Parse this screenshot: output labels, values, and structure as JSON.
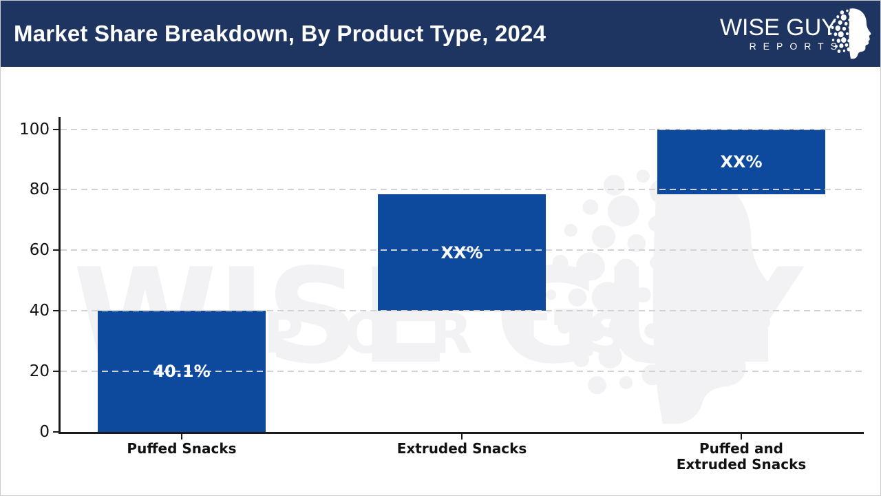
{
  "header": {
    "title": "Market Share Breakdown, By Product Type, 2024",
    "logo": {
      "wordmark": "WISE GUY",
      "subtext": "REPORTS"
    }
  },
  "watermark": {
    "wordmark": "WISE GUY",
    "subtext": "REPORTS"
  },
  "colors": {
    "header_bg": "#1e3461",
    "bar_blue": "#0d4a9e",
    "title_text": "#ffffff",
    "watermark_gray": "#f2f2f4",
    "axis_black": "#1a1a1a",
    "gridline_gray": "#d2d2d2",
    "frame_border": "#cccccc"
  },
  "chart_data": {
    "type": "bar",
    "variant": "floating segmented bars, cumulative to 100%",
    "title": "Market Share Breakdown, By Product Type, 2024",
    "categories": [
      "Puffed Snacks",
      "Extruded Snacks",
      "Puffed and Extruded Snacks"
    ],
    "category_display": [
      "Puffed Snacks",
      "Extruded Snacks",
      "Puffed and\nExtruded Snacks"
    ],
    "bars": [
      {
        "category": "Puffed Snacks",
        "start": 0,
        "end": 40.1,
        "value_label": "40.1%"
      },
      {
        "category": "Extruded Snacks",
        "start": 40.1,
        "end": 78.4,
        "value_label": "XX%"
      },
      {
        "category": "Puffed and Extruded Snacks",
        "start": 78.4,
        "end": 100,
        "value_label": "XX%"
      }
    ],
    "xlabel": "",
    "ylabel": "",
    "yticks": [
      0,
      20,
      40,
      60,
      80,
      100
    ],
    "ylim": [
      0,
      104
    ],
    "bar_color": "#0d4a9e",
    "value_label_color": "#ffffff",
    "grid": {
      "axis": "y",
      "style": "dashed",
      "drawn_above_bars": true
    },
    "legend": "none"
  }
}
